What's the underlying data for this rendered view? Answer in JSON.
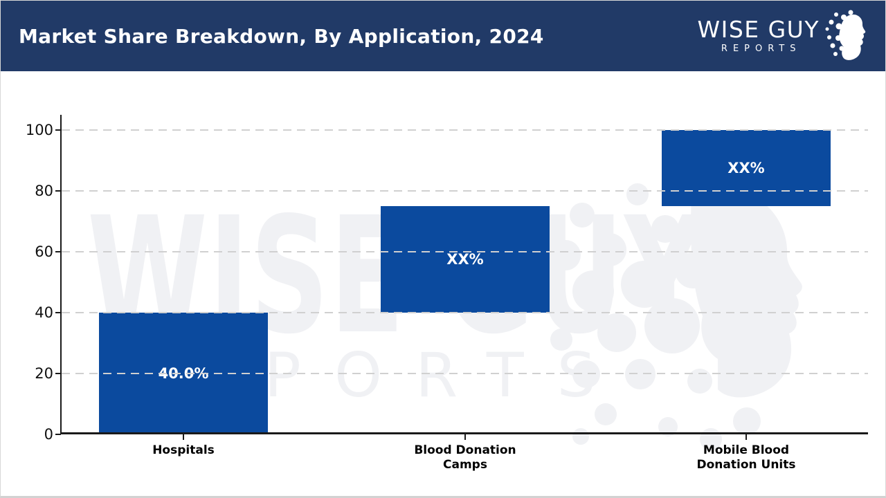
{
  "header": {
    "title": "Market Share Breakdown, By Application, 2024"
  },
  "brand": {
    "name": "WISE GUY",
    "sub": "REPORTS"
  },
  "watermark": {
    "line1": "WISE GUY",
    "line2": "REPORTS"
  },
  "chart_data": {
    "type": "bar",
    "subtype": "floating-waterfall",
    "title": "Market Share Breakdown, By Application, 2024",
    "categories": [
      "Hospitals",
      "Blood Donation Camps",
      "Mobile Blood Donation Units"
    ],
    "bars": [
      {
        "category": "Hospitals",
        "category_lines": [
          "Hospitals"
        ],
        "start": 0,
        "end": 40,
        "label": "40.0%"
      },
      {
        "category": "Blood Donation Camps",
        "category_lines": [
          "Blood Donation",
          "Camps"
        ],
        "start": 40,
        "end": 75,
        "label": "XX%"
      },
      {
        "category": "Mobile Blood Donation Units",
        "category_lines": [
          "Mobile Blood",
          "Donation Units"
        ],
        "start": 75,
        "end": 100,
        "label": "XX%"
      }
    ],
    "yticks": [
      "0",
      "20",
      "40",
      "60",
      "80",
      "100"
    ],
    "ytick_values": [
      0,
      20,
      40,
      60,
      80,
      100
    ],
    "ylim": [
      0,
      105
    ],
    "xlabel": "",
    "ylabel": "",
    "grid": "horizontal-dashed",
    "legend": "none",
    "bar_color": "#0b4a9e",
    "value_label_color": "#ffffff",
    "header_bg_color": "#213a67",
    "gridline_color": "#d0d0d0",
    "axis_color": "#1a1a1a"
  }
}
